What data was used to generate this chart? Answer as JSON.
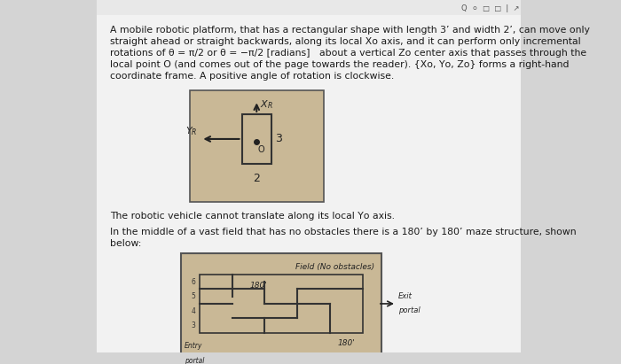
{
  "bg_color": "#e8e8e8",
  "page_bg": "#f0f0f0",
  "text_color": "#222222",
  "paragraph1": "A mobile robotic platform, that has a rectangular shape with length 3’ and width 2’, can move only straight ahead or straight backwards, along its local Xᴏ axis, and it can perform only incremental rotations of θ = π/2 or θ = −π/2 [radians]   about a vertical Zᴏ center axis that passes through the local point O (and comes out of the page towards the reader). {Xᴏ, Yᴏ, Zᴏ} forms a right-hand coordinate frame. A positive angle of rotation is clockwise.",
  "paragraph2": "The robotic vehicle cannot translate along its local Yᴏ axis.",
  "paragraph3": "In the middle of a vast field that has no obstacles there is a 180’ by 180’ maze structure, shown below:",
  "sketch_bg": "#c8b89a",
  "maze_bg": "#c8b89a",
  "font_size_body": 9.5,
  "font_size_label": 8
}
